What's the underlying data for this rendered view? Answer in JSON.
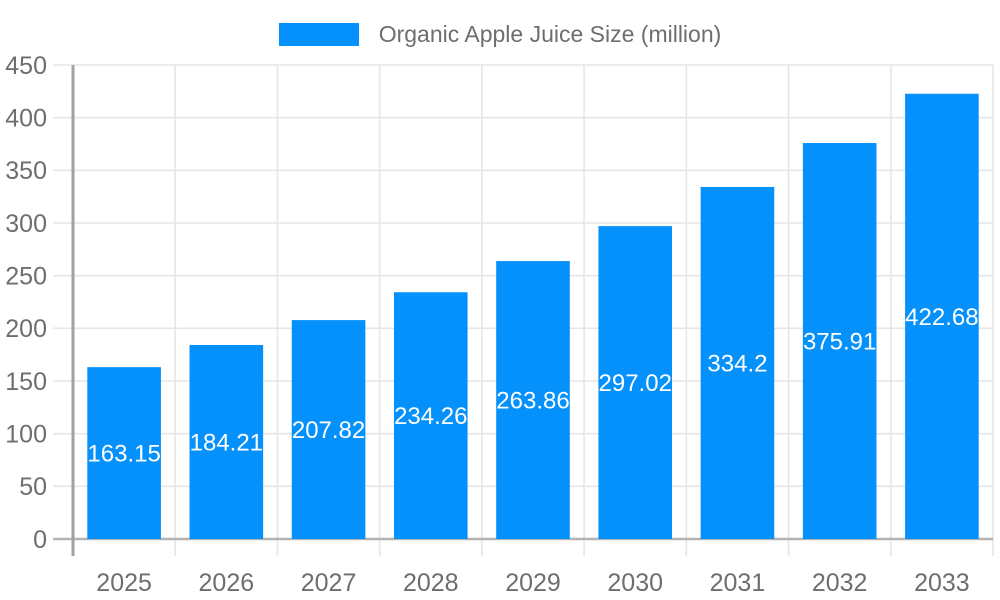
{
  "chart_data": {
    "type": "bar",
    "title": "Organic Apple Juice Size (million)",
    "categories": [
      "2025",
      "2026",
      "2027",
      "2028",
      "2029",
      "2030",
      "2031",
      "2032",
      "2033"
    ],
    "series": [
      {
        "name": "Organic Apple Juice Size (million)",
        "values": [
          163.15,
          184.21,
          207.82,
          234.26,
          263.86,
          297.02,
          334.2,
          375.91,
          422.68
        ]
      }
    ],
    "value_labels": [
      "163.15",
      "184.21",
      "207.82",
      "234.26",
      "263.86",
      "297.02",
      "334.2",
      "375.91",
      "422.68"
    ],
    "xlabel": "",
    "ylabel": "",
    "ylim": [
      0,
      450
    ],
    "y_tick_step": 50,
    "y_tick_labels": [
      "0",
      "50",
      "100",
      "150",
      "200",
      "250",
      "300",
      "350",
      "400",
      "450"
    ],
    "grid": true,
    "legend_position": "top",
    "colors": {
      "bar": "#0591fb",
      "value_label": "#ffffff",
      "grid": "#e6e6e6",
      "baseline": "#b3b3b3",
      "axis": "#a2a2a2",
      "tick_label": "#6e6e6e",
      "legend_text": "#6e6e6e"
    }
  }
}
